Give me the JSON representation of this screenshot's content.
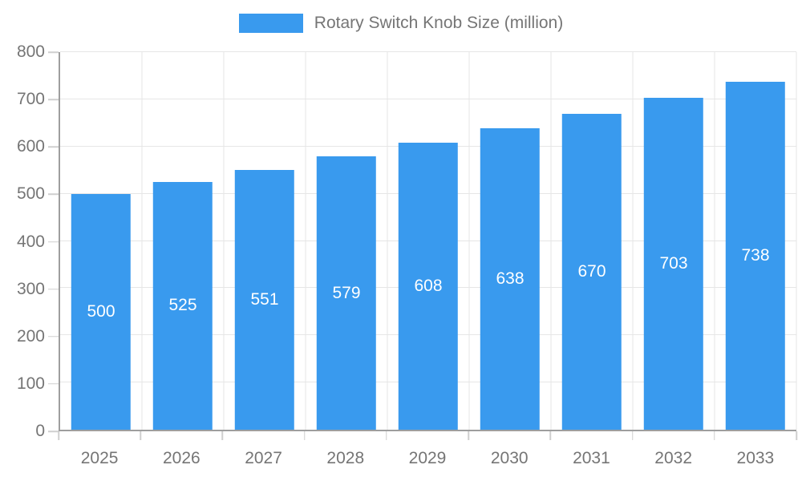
{
  "legend": {
    "items": [
      {
        "label": "Rotary Switch Knob Size (million)",
        "color": "#399AEE"
      }
    ]
  },
  "chart_data": {
    "type": "bar",
    "title": "Rotary Switch Knob Size (million)",
    "categories": [
      "2025",
      "2026",
      "2027",
      "2028",
      "2029",
      "2030",
      "2031",
      "2032",
      "2033"
    ],
    "values": [
      500,
      525,
      551,
      579,
      608,
      638,
      670,
      703,
      738
    ],
    "series": [
      {
        "name": "Rotary Switch Knob Size (million)",
        "values": [
          500,
          525,
          551,
          579,
          608,
          638,
          670,
          703,
          738
        ]
      }
    ],
    "xlabel": "",
    "ylabel": "",
    "ylim": [
      0,
      800
    ],
    "yticks": [
      0,
      100,
      200,
      300,
      400,
      500,
      600,
      700,
      800
    ],
    "grid": true,
    "legend_position": "top",
    "bar_labels_inside": true,
    "bar_color": "#399AEE",
    "bar_label_color": "#FFFFFF",
    "axis_label_color": "#757575",
    "axis_line_color": "#9E9E9E",
    "gridline_color": "#E6E6E6",
    "tick_color": "#CFCFCF",
    "background_color": "#FFFFFF"
  }
}
